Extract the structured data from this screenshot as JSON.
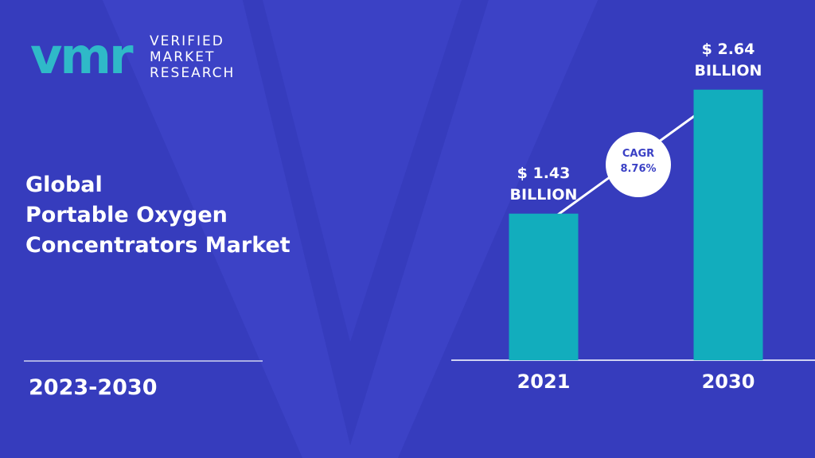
{
  "logo": {
    "mark": "vmr",
    "lines": [
      "VERIFIED",
      "MARKET",
      "RESEARCH"
    ]
  },
  "headline": [
    "Global",
    "Portable Oxygen",
    "Concentrators Market"
  ],
  "period": "2023-2030",
  "chart_data": {
    "type": "bar",
    "categories": [
      "2021",
      "2030"
    ],
    "values": [
      1.43,
      2.64
    ],
    "value_labels": [
      "$ 1.43 BILLION",
      "$ 2.64 BILLION"
    ],
    "color": "#12adbd",
    "ylim": [
      0,
      2.7
    ],
    "annotation": {
      "label": "CAGR",
      "value": "8.76%"
    }
  }
}
